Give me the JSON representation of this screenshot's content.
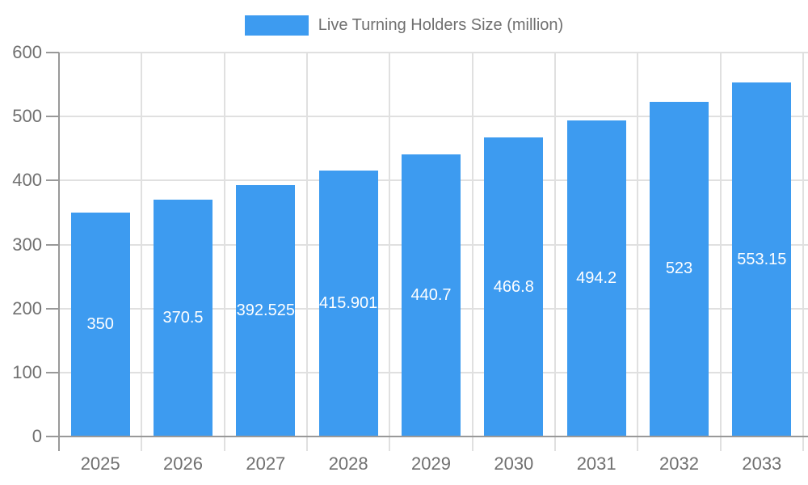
{
  "legend": {
    "label": "Live Turning Holders Size (million)"
  },
  "colors": {
    "bar": "#3D9BF0",
    "gridline": "#E0E0E0",
    "axis_line": "#999999",
    "tick_text": "#707070",
    "bar_label_text": "#FFFFFF",
    "background": "#FFFFFF"
  },
  "chart_data": {
    "type": "bar",
    "title": "Live Turning Holders Size (million)",
    "categories": [
      "2025",
      "2026",
      "2027",
      "2028",
      "2029",
      "2030",
      "2031",
      "2032",
      "2033"
    ],
    "values": [
      350,
      370.5,
      392.525,
      415.901,
      440.7,
      466.8,
      494.2,
      523,
      553.15
    ],
    "value_labels": [
      "350",
      "370.5",
      "392.525",
      "415.901",
      "440.7",
      "466.8",
      "494.2",
      "523",
      "553.15"
    ],
    "xlabel": "",
    "ylabel": "",
    "ylim": [
      0,
      600
    ],
    "yticks": [
      0,
      100,
      200,
      300,
      400,
      500,
      600
    ],
    "grid": true,
    "legend_position": "top-center",
    "bar_label_position": "center",
    "series_name": "Live Turning Holders Size (million)"
  }
}
